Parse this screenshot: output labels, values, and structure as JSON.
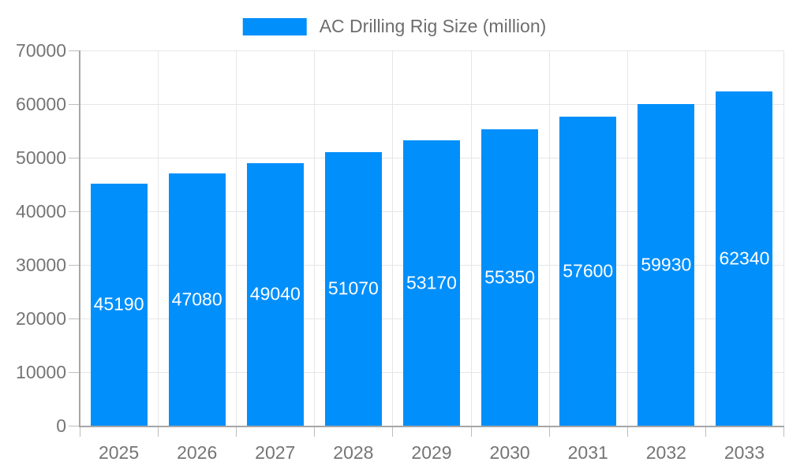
{
  "chart_data": {
    "type": "bar",
    "title": "AC Drilling Rig Size (million)",
    "categories": [
      "2025",
      "2026",
      "2027",
      "2028",
      "2029",
      "2030",
      "2031",
      "2032",
      "2033"
    ],
    "values": [
      45190,
      47080,
      49040,
      51070,
      53170,
      55350,
      57600,
      59930,
      62340
    ],
    "xlabel": "",
    "ylabel": "",
    "ylim": [
      0,
      70000
    ],
    "yticks": [
      0,
      10000,
      20000,
      30000,
      40000,
      50000,
      60000,
      70000
    ],
    "grid": true,
    "legend_position": "top",
    "value_labels_inside_bars": true,
    "colors": {
      "bar": "#008FFB",
      "grid": "#E6E6E6",
      "axis": "#A6A6A6",
      "tick": "#BDBDBD",
      "text": "#757575",
      "value_text": "#FFFFFF",
      "background": "#FFFFFF"
    }
  }
}
